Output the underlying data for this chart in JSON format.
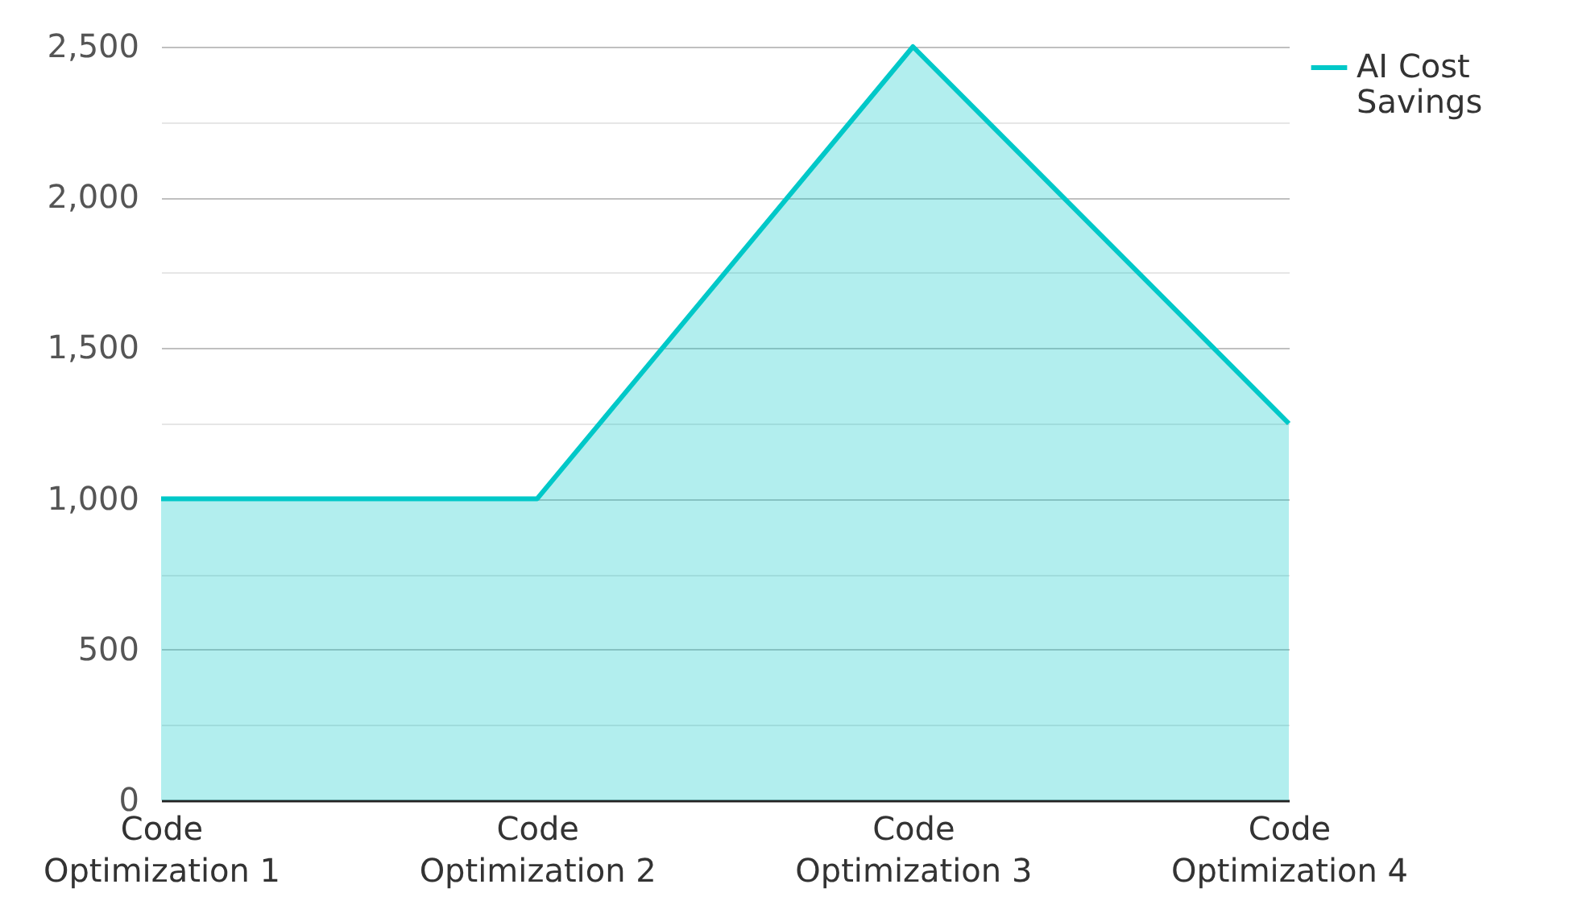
{
  "chart_data": {
    "type": "area",
    "categories": [
      "Code Optimization 1",
      "Code Optimization 2",
      "Code Optimization 3",
      "Code Optimization 4"
    ],
    "series": [
      {
        "name": "AI Cost Savings",
        "color": "#00c8c8",
        "values": [
          1000,
          1000,
          2500,
          1250
        ]
      }
    ],
    "ylim": [
      0,
      2500
    ],
    "yticks": [
      0,
      {
        "value": 250,
        "label": null
      },
      500,
      {
        "value": 750,
        "label": null
      },
      {
        "value": 1000,
        "label": "1,000"
      },
      {
        "value": 1250,
        "label": null
      },
      {
        "value": 1500,
        "label": "1,500"
      },
      {
        "value": 1750,
        "label": null
      },
      {
        "value": 2000,
        "label": "2,000"
      },
      {
        "value": 2250,
        "label": null
      },
      {
        "value": 2500,
        "label": "2,500"
      }
    ],
    "grid": "y",
    "legend": "top right"
  }
}
